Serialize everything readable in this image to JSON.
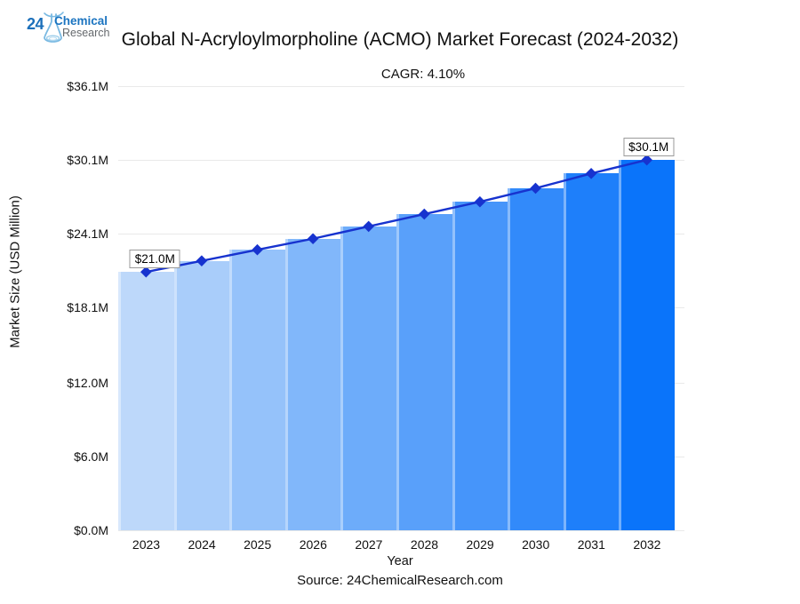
{
  "logo": {
    "number": "24",
    "line1": "Chemical",
    "line2": "Research",
    "icon": "flask-icon",
    "brand_blue": "#1b74c0",
    "flask_blue": "#79b9e2",
    "gray": "#65696d"
  },
  "header": {
    "title": "Global N-Acryloylmorpholine (ACMO) Market Forecast (2024-2032)",
    "subtitle": "CAGR: 4.10%"
  },
  "chart_data": {
    "type": "bar",
    "title": "Global N-Acryloylmorpholine (ACMO) Market Forecast (2024-2032)",
    "subtitle": "CAGR: 4.10%",
    "categories": [
      "2023",
      "2024",
      "2025",
      "2026",
      "2027",
      "2028",
      "2029",
      "2030",
      "2031",
      "2032"
    ],
    "series": [
      {
        "name": "Market Size (bars)",
        "type": "bar",
        "values": [
          21.0,
          21.9,
          22.8,
          23.7,
          24.7,
          25.7,
          26.7,
          27.8,
          29.0,
          30.1
        ],
        "colors": [
          "#BDD8FA",
          "#A9CDFA",
          "#95C2FA",
          "#81B7FA",
          "#6DACFA",
          "#59A0FA",
          "#4695FA",
          "#328AFA",
          "#1E7FFA",
          "#0A74FA"
        ]
      },
      {
        "name": "Market Size (trend line)",
        "type": "line",
        "values": [
          21.0,
          21.9,
          22.8,
          23.7,
          24.7,
          25.7,
          26.7,
          27.8,
          29.0,
          30.1
        ],
        "color": "#1733cf",
        "marker": "diamond"
      }
    ],
    "xlabel": "Year",
    "ylabel": "Market Size (USD Million)",
    "ylim": [
      0,
      36.1
    ],
    "yticks": {
      "values": [
        0,
        6.0,
        12.0,
        18.1,
        24.1,
        30.1,
        36.1
      ],
      "labels": [
        "$0.0M",
        "$6.0M",
        "$12.0M",
        "$18.1M",
        "$24.1M",
        "$30.1M",
        "$36.1M"
      ]
    },
    "grid": true,
    "legend": "none",
    "annotations": [
      {
        "x": "2023",
        "text": "$21.0M"
      },
      {
        "x": "2032",
        "text": "$30.1M"
      }
    ]
  },
  "footer": {
    "source": "Source: 24ChemicalResearch.com"
  }
}
